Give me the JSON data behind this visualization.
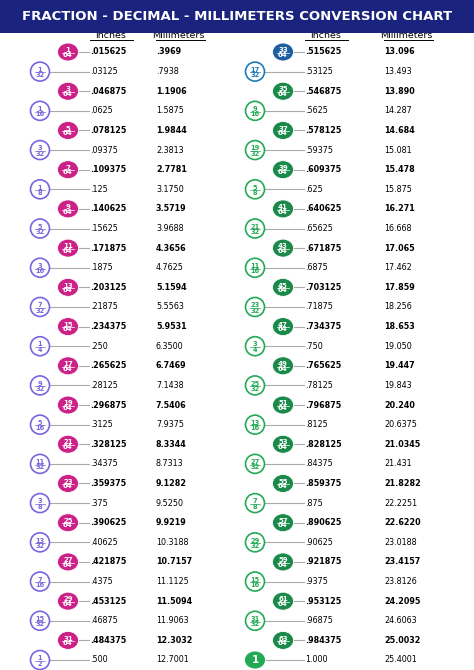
{
  "title": "FRACTION - DECIMAL - MILLIMETERS CONVERSION CHART",
  "title_bg": "#1a237e",
  "title_color": "#ffffff",
  "left_rows": [
    {
      "frac_outer": "1/32",
      "frac_inner": "1/64",
      "inch_inner": ".015625",
      "mm_inner": ".3969",
      "inch_outer": ".03125",
      "mm_outer": ".7938"
    },
    {
      "frac_outer": "1/16",
      "frac_inner": "3/64",
      "inch_inner": ".046875",
      "mm_inner": "1.1906",
      "inch_outer": ".0625",
      "mm_outer": "1.5875"
    },
    {
      "frac_outer": "3/32",
      "frac_inner": "5/64",
      "inch_inner": ".078125",
      "mm_inner": "1.9844",
      "inch_outer": ".09375",
      "mm_outer": "2.3813"
    },
    {
      "frac_outer": "1/8",
      "frac_inner": "7/64",
      "inch_inner": ".109375",
      "mm_inner": "2.7781",
      "inch_outer": ".125",
      "mm_outer": "3.1750"
    },
    {
      "frac_outer": "5/32",
      "frac_inner": "9/64",
      "inch_inner": ".140625",
      "mm_inner": "3.5719",
      "inch_outer": ".15625",
      "mm_outer": "3.9688"
    },
    {
      "frac_outer": "3/16",
      "frac_inner": "11/64",
      "inch_inner": ".171875",
      "mm_inner": "4.3656",
      "inch_outer": ".1875",
      "mm_outer": "4.7625"
    },
    {
      "frac_outer": "7/32",
      "frac_inner": "13/64",
      "inch_inner": ".203125",
      "mm_inner": "5.1594",
      "inch_outer": ".21875",
      "mm_outer": "5.5563"
    },
    {
      "frac_outer": "1/4",
      "frac_inner": "15/64",
      "inch_inner": ".234375",
      "mm_inner": "5.9531",
      "inch_outer": ".250",
      "mm_outer": "6.3500"
    },
    {
      "frac_outer": "9/32",
      "frac_inner": "17/64",
      "inch_inner": ".265625",
      "mm_inner": "6.7469",
      "inch_outer": ".28125",
      "mm_outer": "7.1438"
    },
    {
      "frac_outer": "5/16",
      "frac_inner": "19/64",
      "inch_inner": ".296875",
      "mm_inner": "7.5406",
      "inch_outer": ".3125",
      "mm_outer": "7.9375"
    },
    {
      "frac_outer": "11/32",
      "frac_inner": "21/64",
      "inch_inner": ".328125",
      "mm_inner": "8.3344",
      "inch_outer": ".34375",
      "mm_outer": "8.7313"
    },
    {
      "frac_outer": "3/8",
      "frac_inner": "23/64",
      "inch_inner": ".359375",
      "mm_inner": "9.1282",
      "inch_outer": ".375",
      "mm_outer": "9.5250"
    },
    {
      "frac_outer": "13/32",
      "frac_inner": "25/64",
      "inch_inner": ".390625",
      "mm_inner": "9.9219",
      "inch_outer": ".40625",
      "mm_outer": "10.3188"
    },
    {
      "frac_outer": "7/16",
      "frac_inner": "27/64",
      "inch_inner": ".421875",
      "mm_inner": "10.7157",
      "inch_outer": ".4375",
      "mm_outer": "11.1125"
    },
    {
      "frac_outer": "15/32",
      "frac_inner": "29/64",
      "inch_inner": ".453125",
      "mm_inner": "11.5094",
      "inch_outer": ".46875",
      "mm_outer": "11.9063"
    },
    {
      "frac_outer": "1/2",
      "frac_inner": "31/64",
      "inch_inner": ".484375",
      "mm_inner": "12.3032",
      "inch_outer": ".500",
      "mm_outer": "12.7001"
    }
  ],
  "right_rows": [
    {
      "frac_outer": "17/32",
      "frac_inner": "33/64",
      "inner_color": "#1e5fa0",
      "outer_color": "#1e7ab8",
      "inch_inner": ".515625",
      "mm_inner": "13.096",
      "inch_outer": ".53125",
      "mm_outer": "13.493"
    },
    {
      "frac_outer": "9/16",
      "frac_inner": "35/64",
      "inner_color": "#1a8a4a",
      "outer_color": "#22aa55",
      "inch_inner": ".546875",
      "mm_inner": "13.890",
      "inch_outer": ".5625",
      "mm_outer": "14.287"
    },
    {
      "frac_outer": "19/32",
      "frac_inner": "37/64",
      "inner_color": "#1a8a4a",
      "outer_color": "#22aa55",
      "inch_inner": ".578125",
      "mm_inner": "14.684",
      "inch_outer": ".59375",
      "mm_outer": "15.081"
    },
    {
      "frac_outer": "5/8",
      "frac_inner": "39/64",
      "inner_color": "#1a8a4a",
      "outer_color": "#22aa55",
      "inch_inner": ".609375",
      "mm_inner": "15.478",
      "inch_outer": ".625",
      "mm_outer": "15.875"
    },
    {
      "frac_outer": "21/32",
      "frac_inner": "41/64",
      "inner_color": "#1a8a4a",
      "outer_color": "#22aa55",
      "inch_inner": ".640625",
      "mm_inner": "16.271",
      "inch_outer": ".65625",
      "mm_outer": "16.668"
    },
    {
      "frac_outer": "11/16",
      "frac_inner": "43/64",
      "inner_color": "#1a8a4a",
      "outer_color": "#22aa55",
      "inch_inner": ".671875",
      "mm_inner": "17.065",
      "inch_outer": ".6875",
      "mm_outer": "17.462"
    },
    {
      "frac_outer": "23/32",
      "frac_inner": "45/64",
      "inner_color": "#1a8a4a",
      "outer_color": "#22aa55",
      "inch_inner": ".703125",
      "mm_inner": "17.859",
      "inch_outer": ".71875",
      "mm_outer": "18.256"
    },
    {
      "frac_outer": "3/4",
      "frac_inner": "47/64",
      "inner_color": "#1a8a4a",
      "outer_color": "#22aa55",
      "inch_inner": ".734375",
      "mm_inner": "18.653",
      "inch_outer": ".750",
      "mm_outer": "19.050"
    },
    {
      "frac_outer": "25/32",
      "frac_inner": "49/64",
      "inner_color": "#1a8a4a",
      "outer_color": "#22aa55",
      "inch_inner": ".765625",
      "mm_inner": "19.447",
      "inch_outer": ".78125",
      "mm_outer": "19.843"
    },
    {
      "frac_outer": "13/16",
      "frac_inner": "51/64",
      "inner_color": "#1a8a4a",
      "outer_color": "#22aa55",
      "inch_inner": ".796875",
      "mm_inner": "20.240",
      "inch_outer": ".8125",
      "mm_outer": "20.6375"
    },
    {
      "frac_outer": "27/32",
      "frac_inner": "53/64",
      "inner_color": "#1a8a4a",
      "outer_color": "#22aa55",
      "inch_inner": ".828125",
      "mm_inner": "21.0345",
      "inch_outer": ".84375",
      "mm_outer": "21.431"
    },
    {
      "frac_outer": "7/8",
      "frac_inner": "55/64",
      "inner_color": "#1a8a4a",
      "outer_color": "#22aa55",
      "inch_inner": ".859375",
      "mm_inner": "21.8282",
      "inch_outer": ".875",
      "mm_outer": "22.2251"
    },
    {
      "frac_outer": "29/32",
      "frac_inner": "57/64",
      "inner_color": "#1a8a4a",
      "outer_color": "#22aa55",
      "inch_inner": ".890625",
      "mm_inner": "22.6220",
      "inch_outer": ".90625",
      "mm_outer": "23.0188"
    },
    {
      "frac_outer": "15/16",
      "frac_inner": "59/64",
      "inner_color": "#1a8a4a",
      "outer_color": "#22aa55",
      "inch_inner": ".921875",
      "mm_inner": "23.4157",
      "inch_outer": ".9375",
      "mm_outer": "23.8126"
    },
    {
      "frac_outer": "31/32",
      "frac_inner": "61/64",
      "inner_color": "#1a8a4a",
      "outer_color": "#22aa55",
      "inch_inner": ".953125",
      "mm_inner": "24.2095",
      "inch_outer": ".96875",
      "mm_outer": "24.6063"
    },
    {
      "frac_outer": "1",
      "frac_inner": "63/64",
      "inner_color": "#1a8a4a",
      "outer_color": "#22aa55",
      "inch_inner": ".984375",
      "mm_inner": "25.0032",
      "inch_outer": "1.000",
      "mm_outer": "25.4001"
    }
  ],
  "left_inner_color": "#cc2288",
  "left_outer_color": "#7766dd",
  "bg_color": "#ffffff",
  "line_color": "#aaaaaa",
  "title_fontsize": 9.5
}
